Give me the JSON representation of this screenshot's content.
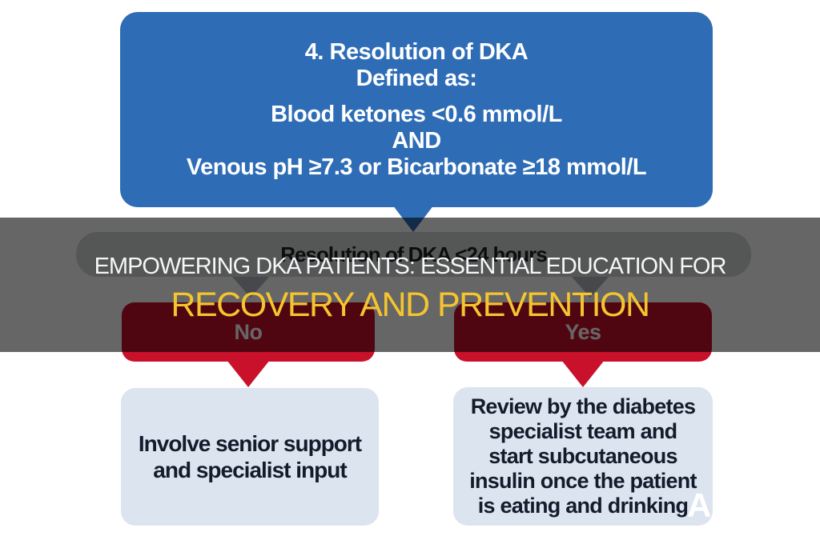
{
  "banner": {
    "title_line_1": "EMPOWERING DKA PATIENTS: ESSENTIAL EDUCATION FOR",
    "title_line_2": "RECOVERY AND PREVENTION"
  },
  "flowchart": {
    "definition_box": {
      "line_1": "4. Resolution of DKA",
      "line_2": "Defined as:",
      "line_3": "Blood ketones <0.6 mmol/L",
      "line_4": "AND",
      "line_5": "Venous pH ≥7.3 or Bicarbonate ≥18 mmol/L"
    },
    "decision_bar": {
      "label": "Resolution of DKA <24 hours"
    },
    "no_branch": {
      "label": "No",
      "outcome_line_1": "Involve senior support",
      "outcome_line_2": "and specialist input"
    },
    "yes_branch": {
      "label": "Yes",
      "outcome_line_1": "Review by the diabetes",
      "outcome_line_2": "specialist team and",
      "outcome_line_3": "start subcutaneous",
      "outcome_line_4": "insulin once the patient",
      "outcome_line_5": "is eating and drinking"
    },
    "watermark_fragment": "AI"
  },
  "colors": {
    "box_blue": "#2e6db6",
    "bar_gray": "#d5d6d8",
    "connector_gray": "#aeb4bb",
    "branch_red": "#c9112b",
    "outcome_light_blue": "#dce4f0",
    "outcome_text_navy": "#121c2a",
    "bar_text_dark": "#1b2025",
    "banner_title_white": "#f5f6f7",
    "banner_title_yellow": "#f5c52f",
    "overlay": "rgba(0,0,0,0.60)"
  }
}
